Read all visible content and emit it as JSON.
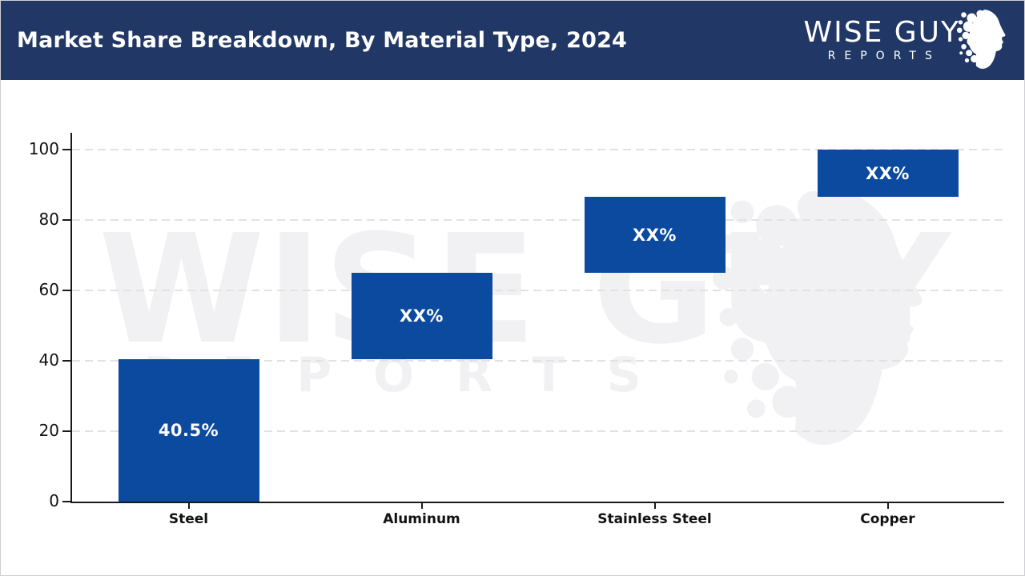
{
  "header": {
    "title": "Market Share Breakdown, By Material Type, 2024",
    "logo": {
      "line1": "WISE GUY",
      "line2": "REPORTS"
    }
  },
  "watermark": {
    "line1": "WISE GUY",
    "line2": "REPORTS"
  },
  "colors": {
    "header_bg": "#213866",
    "bar": "#0b4a9e",
    "grid": "#e2e2e2",
    "axis": "#1a1a1a",
    "watermark": "#f1f1f4",
    "bar_label": "#ffffff"
  },
  "chart_data": {
    "type": "bar",
    "subtype": "waterfall",
    "title": "Market Share Breakdown, By Material Type, 2024",
    "categories": [
      "Steel",
      "Aluminum",
      "Stainless Steel",
      "Copper"
    ],
    "segments": [
      {
        "category": "Steel",
        "label": "40.5%",
        "start": 0,
        "end": 40.5
      },
      {
        "category": "Aluminum",
        "label": "XX%",
        "start": 40.5,
        "end": 65
      },
      {
        "category": "Stainless Steel",
        "label": "XX%",
        "start": 65,
        "end": 86.5
      },
      {
        "category": "Copper",
        "label": "XX%",
        "start": 86.5,
        "end": 100
      }
    ],
    "yticks": [
      0,
      20,
      40,
      60,
      80,
      100
    ],
    "ylim": [
      0,
      104
    ],
    "xlabel": "",
    "ylabel": "",
    "grid": "horizontal-dashed",
    "legend": null
  }
}
